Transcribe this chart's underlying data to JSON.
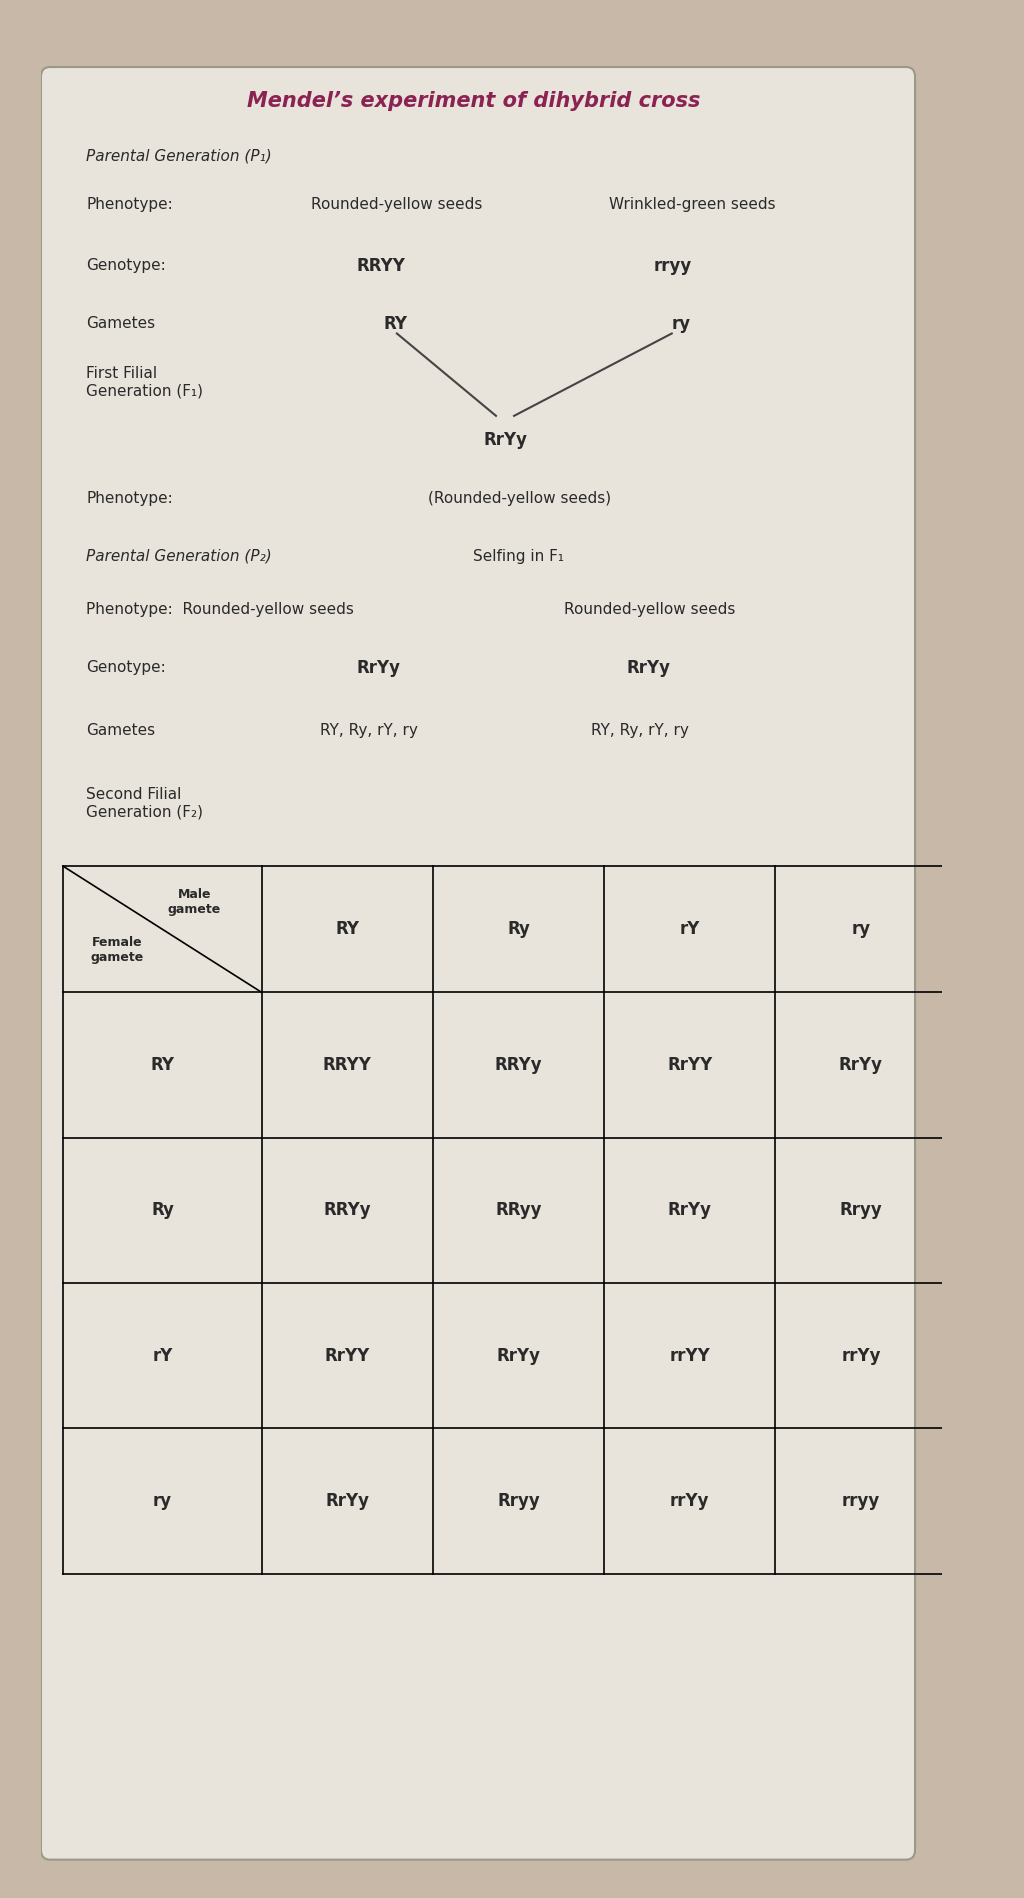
{
  "title": "Mendel’s experiment of dihybrid cross",
  "bg_color": "#c8b8a8",
  "box_bg": "#e8e4dc",
  "title_color": "#8b2252",
  "text_color": "#2a2a2a",
  "sections": {
    "p1_label": "Parental Generation (P₁)",
    "phenotype_label": "Phenotype:",
    "phenotype_p1_left": "Rounded-yellow seeds",
    "phenotype_p1_right": "Wrinkled-green seeds",
    "genotype_label": "Genotype:",
    "genotype_left": "RRYY",
    "genotype_right": "rryy",
    "gametes_label": "Gametes",
    "gametes_left": "RY",
    "gametes_right": "ry",
    "f1_label": "First Filial\nGeneration (F₁)",
    "f1_genotype": "RrYy",
    "phenotype2_label": "Phenotype:",
    "phenotype2_value": "(Rounded-yellow seeds)",
    "p2_label": "Parental Generation (P₂)",
    "selfing_label": "Selfing in F₁",
    "phenotype_p2_label": "Phenotype:",
    "phenotype_p2_left": "Rounded-yellow seeds",
    "phenotype_p2_right": "Rounded-yellow seeds",
    "genotype2_label": "Genotype:",
    "genotype2_left": "RrYy",
    "genotype2_right": "RrYy",
    "gametes2_label": "Gametes",
    "gametes2_left": "RY, Ry, rY, ry",
    "gametes2_right": "RY, Ry, rY, ry",
    "f2_label": "Second Filial\nGeneration (F₂)"
  },
  "table": {
    "male_gametes": [
      "RY",
      "Ry",
      "rY",
      "ry"
    ],
    "female_gametes": [
      "RY",
      "Ry",
      "rY",
      "ry"
    ],
    "rows": [
      [
        "RRYY",
        "RRYy",
        "RrYY",
        "RrYy"
      ],
      [
        "RRYy",
        "RRyy",
        "RrYy",
        "Rryy"
      ],
      [
        "RrYY",
        "RrYy",
        "rrYY",
        "rrYy"
      ],
      [
        "RrYy",
        "Rryy",
        "rrYy",
        "rryy"
      ]
    ]
  }
}
